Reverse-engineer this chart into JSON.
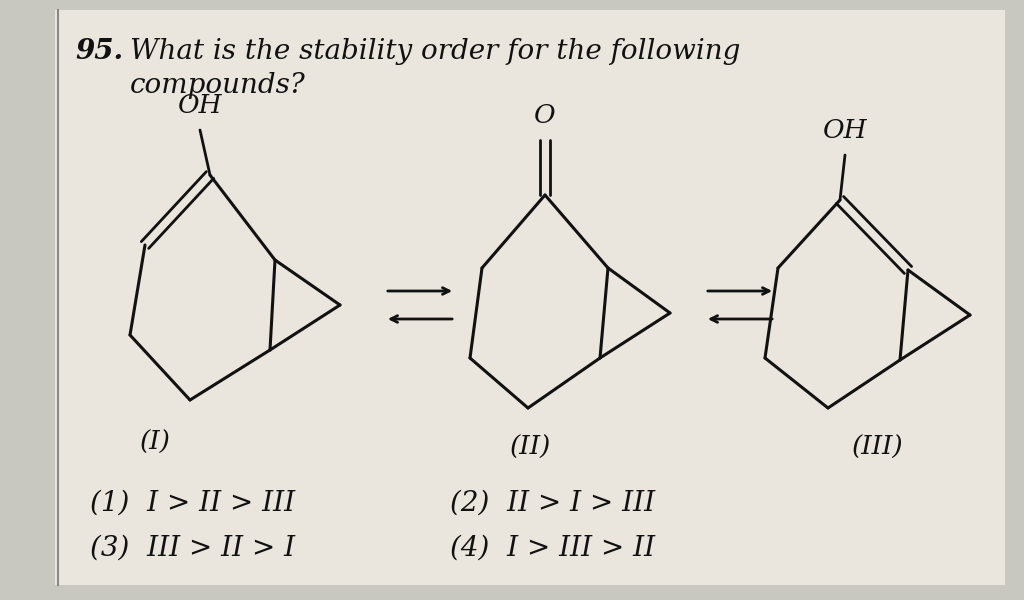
{
  "bg_color": "#c8c8c0",
  "content_bg": "#e8e4dc",
  "text_color": "#111111",
  "struct_color": "#111111",
  "q_num": "95.",
  "q_line1": "What is the stability order for the following",
  "q_line2": "compounds?",
  "label_I": "(I)",
  "label_II": "(II)",
  "label_III": "(III)",
  "opt1": "(1)  I > II > III",
  "opt2": "(3)  III > II > I",
  "opt3": "(2)  II > I > III",
  "opt4": "(4)  I > III > II"
}
